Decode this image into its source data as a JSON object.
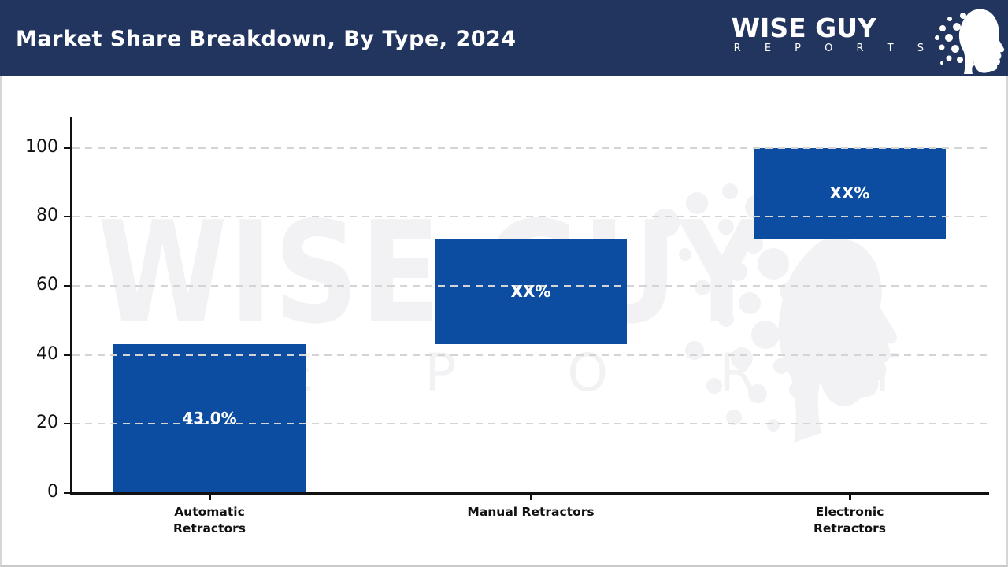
{
  "header": {
    "title": "Market Share Breakdown, By Type, 2024",
    "bg_color": "#21355E",
    "logo": {
      "brand_line1": "WISE GUY",
      "brand_line2": "R E P O R T S"
    }
  },
  "watermark": {
    "line1": "WISE GUY",
    "line2": "R E P O R T S"
  },
  "chart_data": {
    "type": "bar",
    "subtype": "waterfall-floating-bars",
    "title": "Market Share Breakdown, By Type, 2024",
    "categories": [
      {
        "lines": [
          "Automatic",
          "Retractors"
        ]
      },
      {
        "lines": [
          "Manual Retractors"
        ]
      },
      {
        "lines": [
          "Electronic",
          "Retractors"
        ]
      }
    ],
    "segments": [
      {
        "category": "Automatic Retractors",
        "start": 0,
        "end": 43.0,
        "label": "43.0%"
      },
      {
        "category": "Manual Retractors",
        "start": 43.0,
        "end": 73.5,
        "label": "XX%"
      },
      {
        "category": "Electronic Retractors",
        "start": 73.5,
        "end": 100.0,
        "label": "XX%"
      }
    ],
    "yticks": [
      0,
      20,
      40,
      60,
      80,
      100
    ],
    "ylim": [
      0,
      108.8
    ],
    "grid": "horizontal-dashed-above-bars",
    "legend": "none",
    "bar_color": "#0C4DA2",
    "bar_label_color": "#ffffff",
    "gridline_color": "#d4d4d4",
    "axis_color": "#111111",
    "watermark_color": "#f2f2f4"
  }
}
